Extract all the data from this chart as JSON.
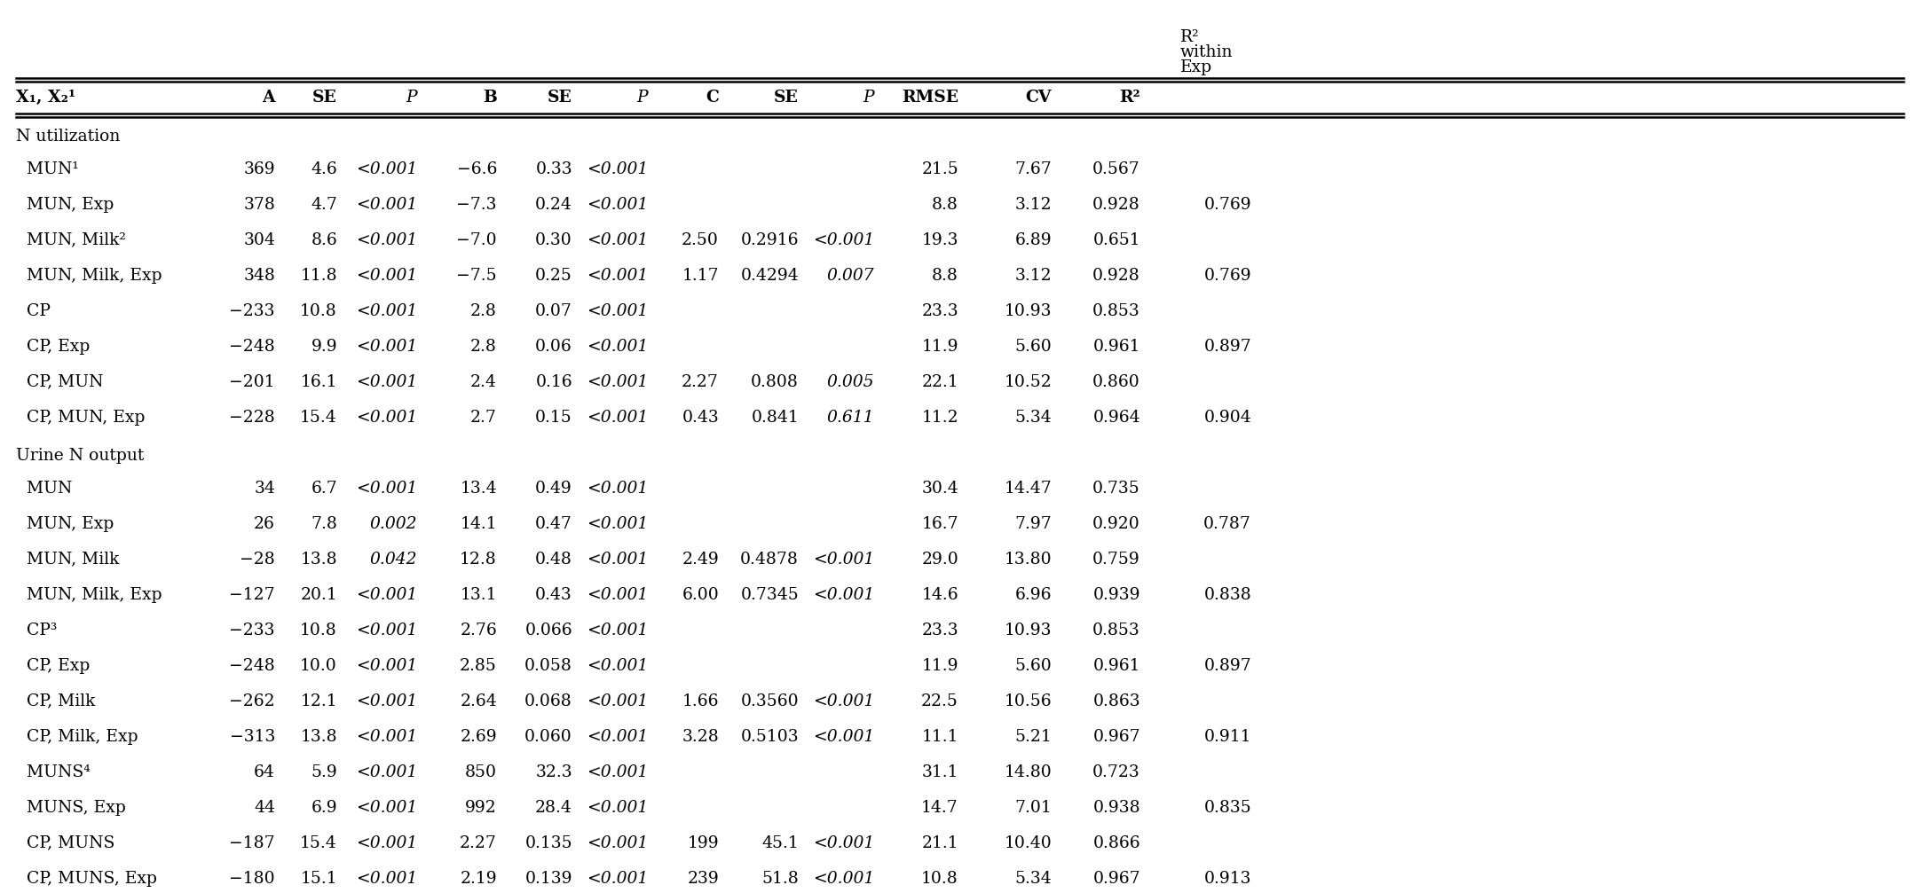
{
  "header_row_main": [
    "X₁, X₂¹",
    "A",
    "SE",
    "P",
    "B",
    "SE",
    "P",
    "C",
    "SE",
    "P",
    "RMSE",
    "CV",
    "R²"
  ],
  "header_last_col": [
    "R²",
    "within",
    "Exp"
  ],
  "section1_header": "N utilization",
  "section2_header": "Urine N output",
  "rows_section1": [
    [
      "  MUN¹",
      "369",
      "4.6",
      "<0.001",
      "−6.6",
      "0.33",
      "<0.001",
      "",
      "",
      "",
      "21.5",
      "7.67",
      "0.567",
      ""
    ],
    [
      "  MUN, Exp",
      "378",
      "4.7",
      "<0.001",
      "−7.3",
      "0.24",
      "<0.001",
      "",
      "",
      "",
      "8.8",
      "3.12",
      "0.928",
      "0.769"
    ],
    [
      "  MUN, Milk²",
      "304",
      "8.6",
      "<0.001",
      "−7.0",
      "0.30",
      "<0.001",
      "2.50",
      "0.2916",
      "<0.001",
      "19.3",
      "6.89",
      "0.651",
      ""
    ],
    [
      "  MUN, Milk, Exp",
      "348",
      "11.8",
      "<0.001",
      "−7.5",
      "0.25",
      "<0.001",
      "1.17",
      "0.4294",
      "0.007",
      "8.8",
      "3.12",
      "0.928",
      "0.769"
    ],
    [
      "  CP",
      "−233",
      "10.8",
      "<0.001",
      "2.8",
      "0.07",
      "<0.001",
      "",
      "",
      "",
      "23.3",
      "10.93",
      "0.853",
      ""
    ],
    [
      "  CP, Exp",
      "−248",
      "9.9",
      "<0.001",
      "2.8",
      "0.06",
      "<0.001",
      "",
      "",
      "",
      "11.9",
      "5.60",
      "0.961",
      "0.897"
    ],
    [
      "  CP, MUN",
      "−201",
      "16.1",
      "<0.001",
      "2.4",
      "0.16",
      "<0.001",
      "2.27",
      "0.808",
      "0.005",
      "22.1",
      "10.52",
      "0.860",
      ""
    ],
    [
      "  CP, MUN, Exp",
      "−228",
      "15.4",
      "<0.001",
      "2.7",
      "0.15",
      "<0.001",
      "0.43",
      "0.841",
      "0.611",
      "11.2",
      "5.34",
      "0.964",
      "0.904"
    ]
  ],
  "rows_section2": [
    [
      "  MUN",
      "34",
      "6.7",
      "<0.001",
      "13.4",
      "0.49",
      "<0.001",
      "",
      "",
      "",
      "30.4",
      "14.47",
      "0.735",
      ""
    ],
    [
      "  MUN, Exp",
      "26",
      "7.8",
      "0.002",
      "14.1",
      "0.47",
      "<0.001",
      "",
      "",
      "",
      "16.7",
      "7.97",
      "0.920",
      "0.787"
    ],
    [
      "  MUN, Milk",
      "−28",
      "13.8",
      "0.042",
      "12.8",
      "0.48",
      "<0.001",
      "2.49",
      "0.4878",
      "<0.001",
      "29.0",
      "13.80",
      "0.759",
      ""
    ],
    [
      "  MUN, Milk, Exp",
      "−127",
      "20.1",
      "<0.001",
      "13.1",
      "0.43",
      "<0.001",
      "6.00",
      "0.7345",
      "<0.001",
      "14.6",
      "6.96",
      "0.939",
      "0.838"
    ],
    [
      "  CP³",
      "−233",
      "10.8",
      "<0.001",
      "2.76",
      "0.066",
      "<0.001",
      "",
      "",
      "",
      "23.3",
      "10.93",
      "0.853",
      ""
    ],
    [
      "  CP, Exp",
      "−248",
      "10.0",
      "<0.001",
      "2.85",
      "0.058",
      "<0.001",
      "",
      "",
      "",
      "11.9",
      "5.60",
      "0.961",
      "0.897"
    ],
    [
      "  CP, Milk",
      "−262",
      "12.1",
      "<0.001",
      "2.64",
      "0.068",
      "<0.001",
      "1.66",
      "0.3560",
      "<0.001",
      "22.5",
      "10.56",
      "0.863",
      ""
    ],
    [
      "  CP, Milk, Exp",
      "−313",
      "13.8",
      "<0.001",
      "2.69",
      "0.060",
      "<0.001",
      "3.28",
      "0.5103",
      "<0.001",
      "11.1",
      "5.21",
      "0.967",
      "0.911"
    ],
    [
      "  MUNS⁴",
      "64",
      "5.9",
      "<0.001",
      "850",
      "32.3",
      "<0.001",
      "",
      "",
      "",
      "31.1",
      "14.80",
      "0.723",
      ""
    ],
    [
      "  MUNS, Exp",
      "44",
      "6.9",
      "<0.001",
      "992",
      "28.4",
      "<0.001",
      "",
      "",
      "",
      "14.7",
      "7.01",
      "0.938",
      "0.835"
    ],
    [
      "  CP, MUNS",
      "−187",
      "15.4",
      "<0.001",
      "2.27",
      "0.135",
      "<0.001",
      "199",
      "45.1",
      "<0.001",
      "21.1",
      "10.40",
      "0.866",
      ""
    ],
    [
      "  CP, MUNS, Exp",
      "−180",
      "15.1",
      "<0.001",
      "2.19",
      "0.139",
      "<0.001",
      "239",
      "51.8",
      "<0.001",
      "10.8",
      "5.34",
      "0.967",
      "0.913"
    ]
  ],
  "col_alignments": [
    "left",
    "right",
    "right",
    "right",
    "right",
    "right",
    "right",
    "right",
    "right",
    "right",
    "right",
    "right",
    "right",
    "right"
  ],
  "italic_cols": [
    3,
    6,
    9
  ],
  "background_color": "#ffffff",
  "text_color": "#000000",
  "font_size": 13.5,
  "header_font_size": 13.5
}
